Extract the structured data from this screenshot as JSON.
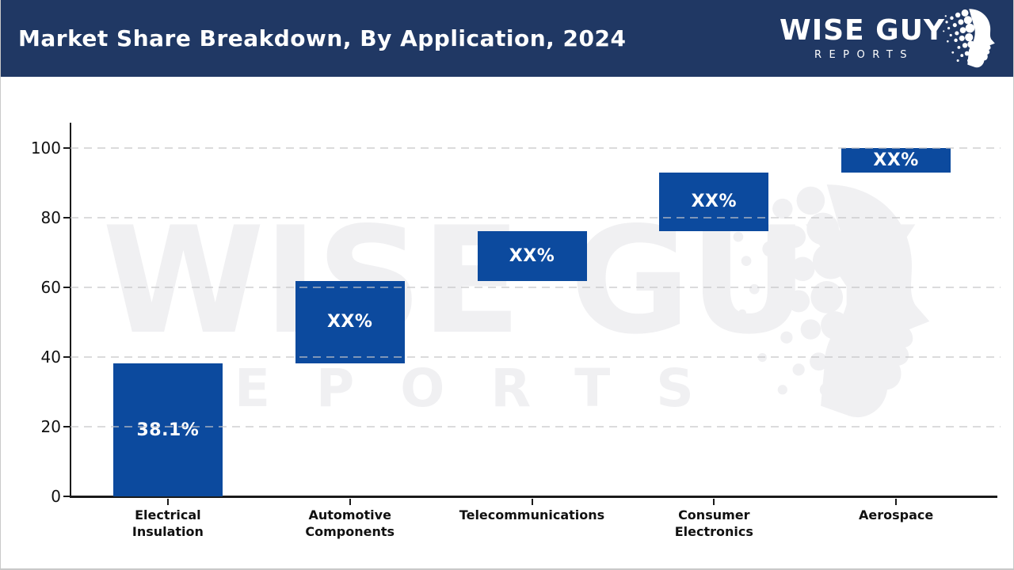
{
  "header": {
    "title": "Market Share Breakdown, By Application, 2024",
    "logo": {
      "line1": "WISE GUY",
      "line2": "REPORTS"
    }
  },
  "watermark": {
    "line1": "WISE GUY",
    "line2": "REPORTS"
  },
  "colors": {
    "header_background": "#203864",
    "bar_fill": "#0c4a9e",
    "bar_label_text": "#ffffff",
    "gridline": "#d8d8d8",
    "axis": "#1a1a1a",
    "watermark": "#f0f0f2"
  },
  "chart_data": {
    "type": "bar",
    "subtype": "waterfall-floating-bars",
    "title": "Market Share Breakdown, By Application, 2024",
    "xlabel": "",
    "ylabel": "",
    "ylim": [
      0,
      100
    ],
    "yticks": [
      0,
      20,
      40,
      60,
      80,
      100
    ],
    "grid": "horizontal-dashed-over-bars",
    "legend": "none",
    "categories": [
      "Electrical Insulation",
      "Automotive Components",
      "Telecommunications",
      "Consumer Electronics",
      "Aerospace"
    ],
    "segments": [
      {
        "category": "Electrical Insulation",
        "label_lines": [
          "Electrical",
          "Insulation"
        ],
        "start": 0,
        "end": 38.1,
        "label": "38.1%"
      },
      {
        "category": "Automotive Components",
        "label_lines": [
          "Automotive",
          "Components"
        ],
        "start": 38.1,
        "end": 61.9,
        "label": "XX%"
      },
      {
        "category": "Telecommunications",
        "label_lines": [
          "Telecommunications"
        ],
        "start": 61.9,
        "end": 76.2,
        "label": "XX%"
      },
      {
        "category": "Consumer Electronics",
        "label_lines": [
          "Consumer",
          "Electronics"
        ],
        "start": 76.2,
        "end": 93.0,
        "label": "XX%"
      },
      {
        "category": "Aerospace",
        "label_lines": [
          "Aerospace"
        ],
        "start": 93.0,
        "end": 100.0,
        "label": "XX%"
      }
    ]
  }
}
